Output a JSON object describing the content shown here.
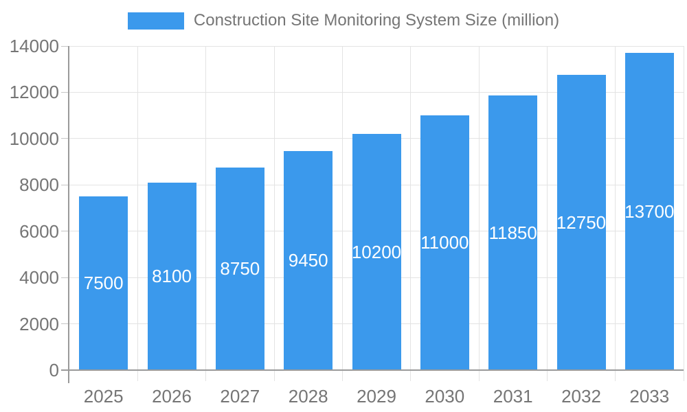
{
  "legend": {
    "label": "Construction Site Monitoring System Size (million)"
  },
  "chart_data": {
    "type": "bar",
    "categories": [
      "2025",
      "2026",
      "2027",
      "2028",
      "2029",
      "2030",
      "2031",
      "2032",
      "2033"
    ],
    "series": [
      {
        "name": "Construction Site Monitoring System Size (million)",
        "values": [
          7500,
          8100,
          8750,
          9450,
          10200,
          11000,
          11850,
          12750,
          13700
        ]
      }
    ],
    "value_labels": [
      "7500",
      "8100",
      "8750",
      "9450",
      "10200",
      "11000",
      "11850",
      "12750",
      "13700"
    ],
    "xlabel": "",
    "ylabel": "",
    "ylim": [
      0,
      14000
    ],
    "yticks": [
      0,
      2000,
      4000,
      6000,
      8000,
      10000,
      12000,
      14000
    ],
    "ytick_labels": [
      "0",
      "2000",
      "4000",
      "6000",
      "8000",
      "10000",
      "12000",
      "14000"
    ],
    "grid": true,
    "legend_position": "top-center",
    "value_label_position": "inside-center"
  },
  "colors": {
    "bar": "#3b99ec",
    "axis_line": "#9a9a9a",
    "gridline": "#e3e3e3",
    "tick_mark": "#c6c6c6",
    "tick_text": "#757575",
    "value_label_text": "#ffffff",
    "background": "#ffffff"
  }
}
